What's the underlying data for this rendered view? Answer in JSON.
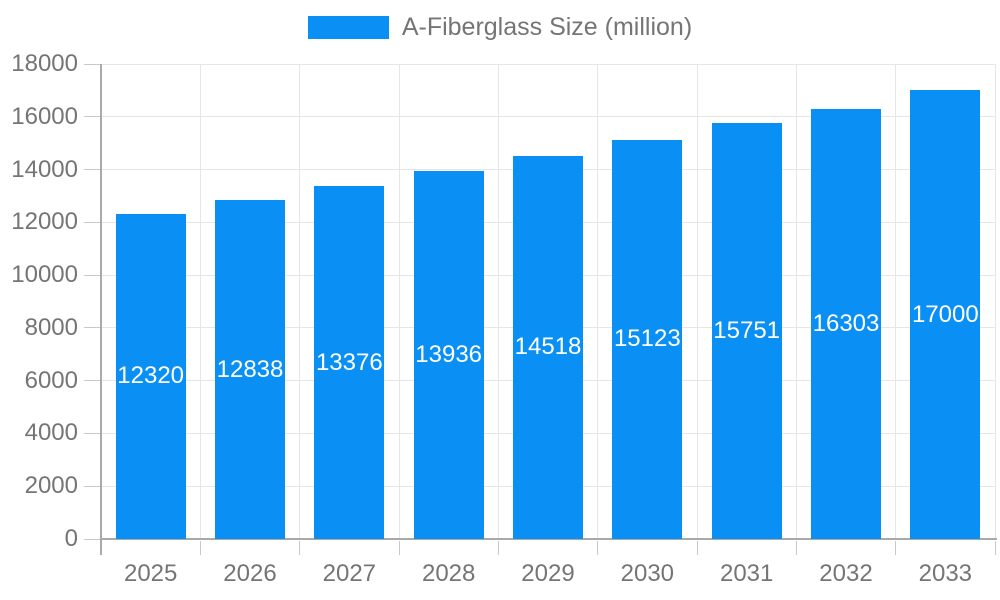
{
  "chart_data": {
    "type": "bar",
    "title": "",
    "legend": "A-Fiberglass Size (million)",
    "legend_position": "top-center",
    "categories": [
      "2025",
      "2026",
      "2027",
      "2028",
      "2029",
      "2030",
      "2031",
      "2032",
      "2033"
    ],
    "values": [
      12320,
      12838,
      13376,
      13936,
      14518,
      15123,
      15751,
      16303,
      17000
    ],
    "xlabel": "",
    "ylabel": "",
    "ylim": [
      0,
      18000
    ],
    "ytick_step": 2000,
    "yticks": [
      0,
      2000,
      4000,
      6000,
      8000,
      10000,
      12000,
      14000,
      16000,
      18000
    ],
    "grid": "on",
    "value_labels": "inside-center",
    "colors": {
      "bar": "#0a90f5",
      "bar_value_label": "#ffffff",
      "axis_text": "#757575",
      "legend_text": "#757575",
      "gridline": "#e6e6e6",
      "axis_line": "#a9a9a9",
      "tick": "#c9c9c9",
      "background": "#ffffff"
    }
  }
}
